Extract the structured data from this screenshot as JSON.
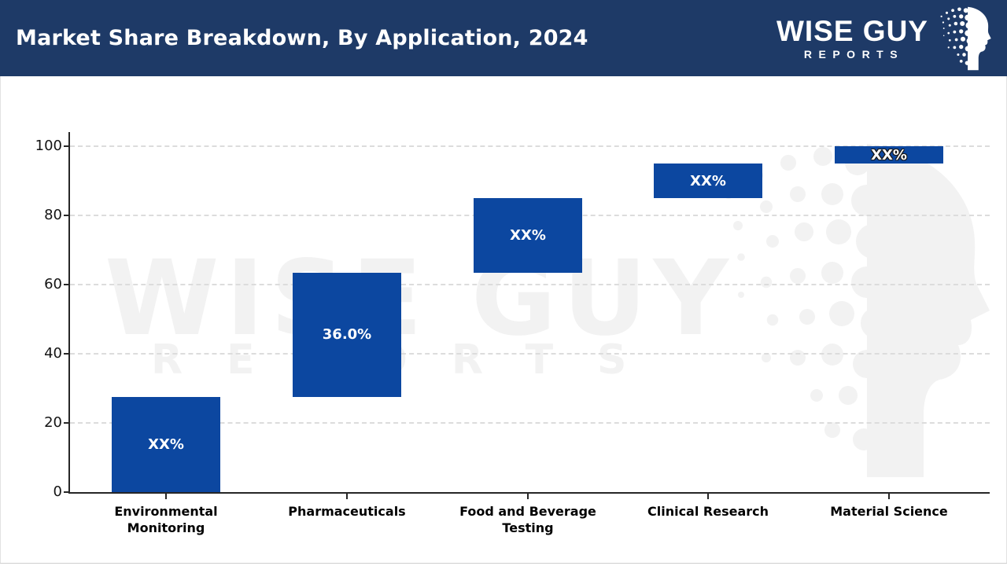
{
  "header": {
    "title": "Market Share Breakdown, By Application, 2024",
    "logo": {
      "line1": "WISE GUY",
      "line2": "REPORTS"
    },
    "bg_color": "#1e3a67"
  },
  "watermark": {
    "line1": "WISE GUY",
    "line2": "REPORTS"
  },
  "chart_data": {
    "type": "bar",
    "subtype": "floating-waterfall",
    "title": "Market Share Breakdown, By Application, 2024",
    "xlabel": "",
    "ylabel": "",
    "categories": [
      "Environmental Monitoring",
      "Pharmaceuticals",
      "Food and Beverage Testing",
      "Clinical Research",
      "Material Science"
    ],
    "series": [
      {
        "name": "Market Share",
        "bases": [
          0,
          27.5,
          63.5,
          85,
          95
        ],
        "values": [
          27.5,
          36.0,
          21.5,
          10.0,
          5.0
        ],
        "labels": [
          "XX%",
          "36.0%",
          "XX%",
          "XX%",
          "XX%"
        ]
      }
    ],
    "yticks": [
      0,
      20,
      40,
      60,
      80,
      100
    ],
    "ylim": [
      0,
      104
    ],
    "grid": "horizontal-dashed",
    "legend": "none",
    "bar_color": "#0c47a0",
    "bar_label_color": "#ffffff",
    "axis_color": "#262626"
  }
}
